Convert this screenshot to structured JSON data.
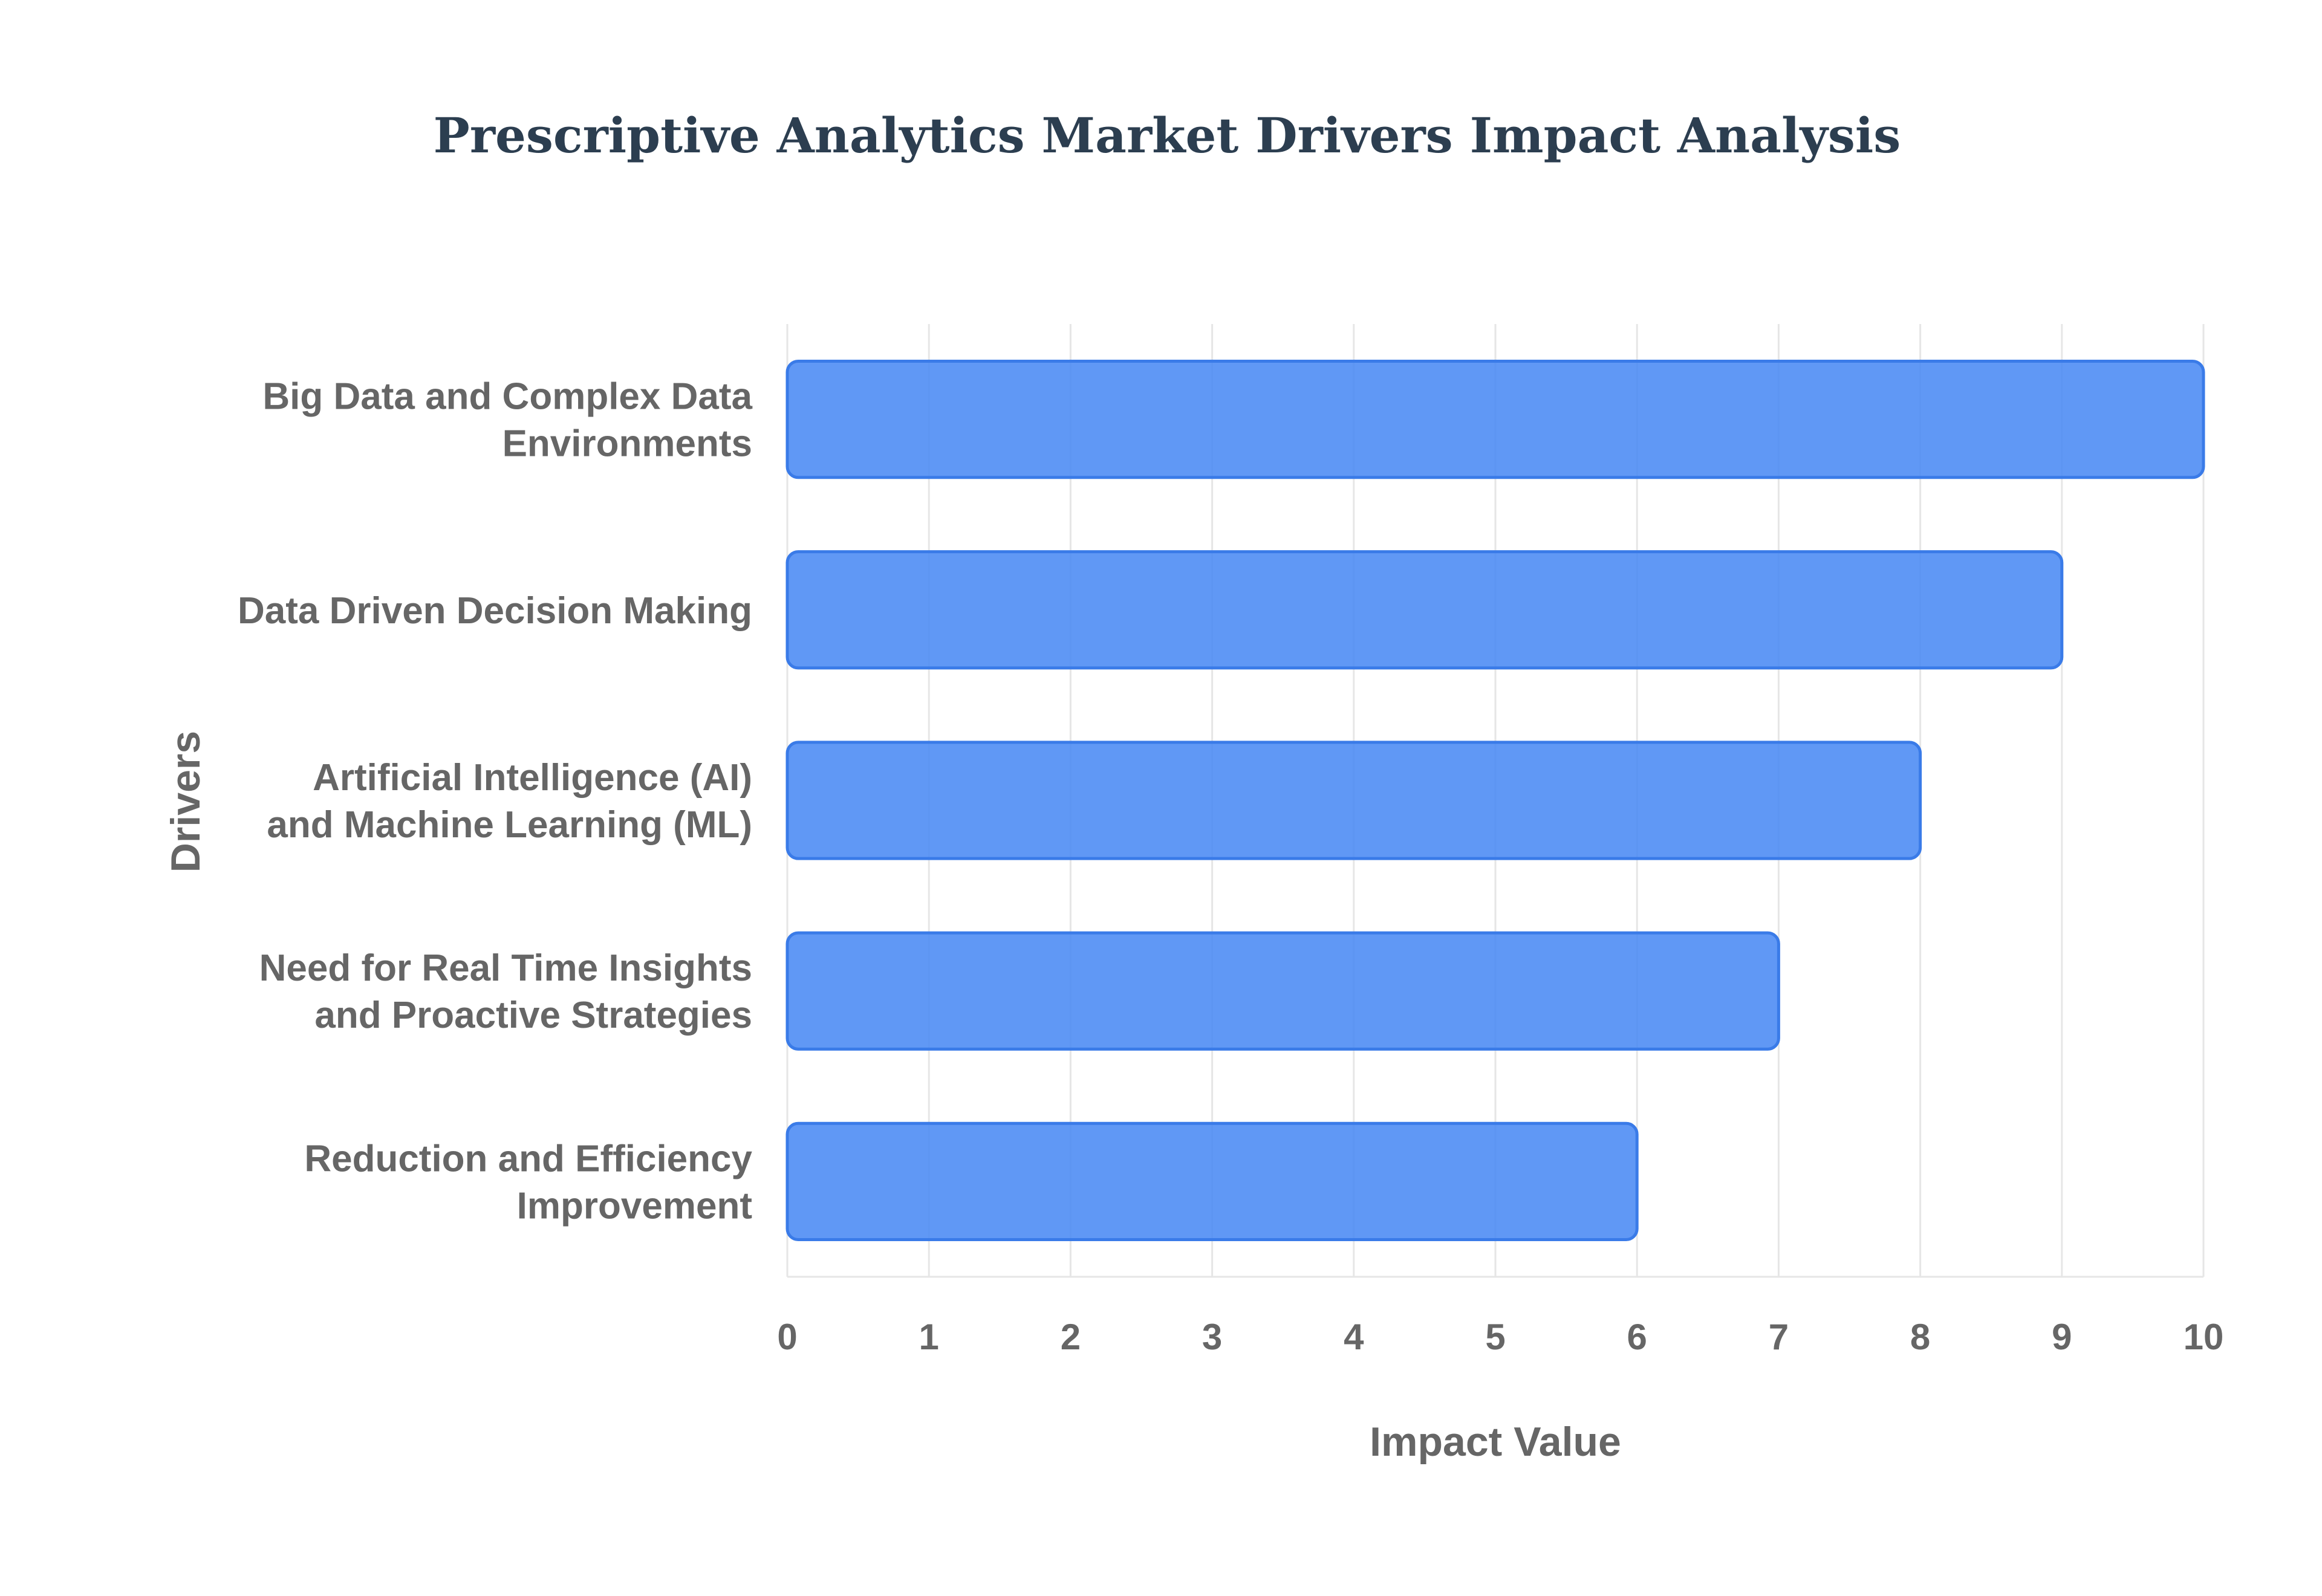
{
  "chart_data": {
    "type": "bar",
    "orientation": "horizontal",
    "title": "Prescriptive Analytics Market Drivers Impact Analysis",
    "xlabel": "Impact Value",
    "ylabel": "Drivers",
    "categories": [
      [
        "Big Data and Complex Data",
        "Environments"
      ],
      [
        "Data Driven Decision Making"
      ],
      [
        "Artificial Intelligence (AI)",
        "and Machine Learning (ML)"
      ],
      [
        "Need for Real Time Insights",
        "and Proactive Strategies"
      ],
      [
        "Reduction and Efficiency",
        "Improvement"
      ]
    ],
    "values": [
      10,
      9,
      8,
      7,
      6
    ],
    "xlim": [
      0,
      10
    ],
    "xticks": [
      "0",
      "1",
      "2",
      "3",
      "4",
      "5",
      "6",
      "7",
      "8",
      "9",
      "10"
    ],
    "grid": true,
    "legend": "none",
    "colors": {
      "bar_fill": "#4a8af4",
      "bar_stroke": "#3a7be8",
      "title": "#2c3e50",
      "text": "#666666",
      "grid": "#e6e6e6"
    }
  }
}
